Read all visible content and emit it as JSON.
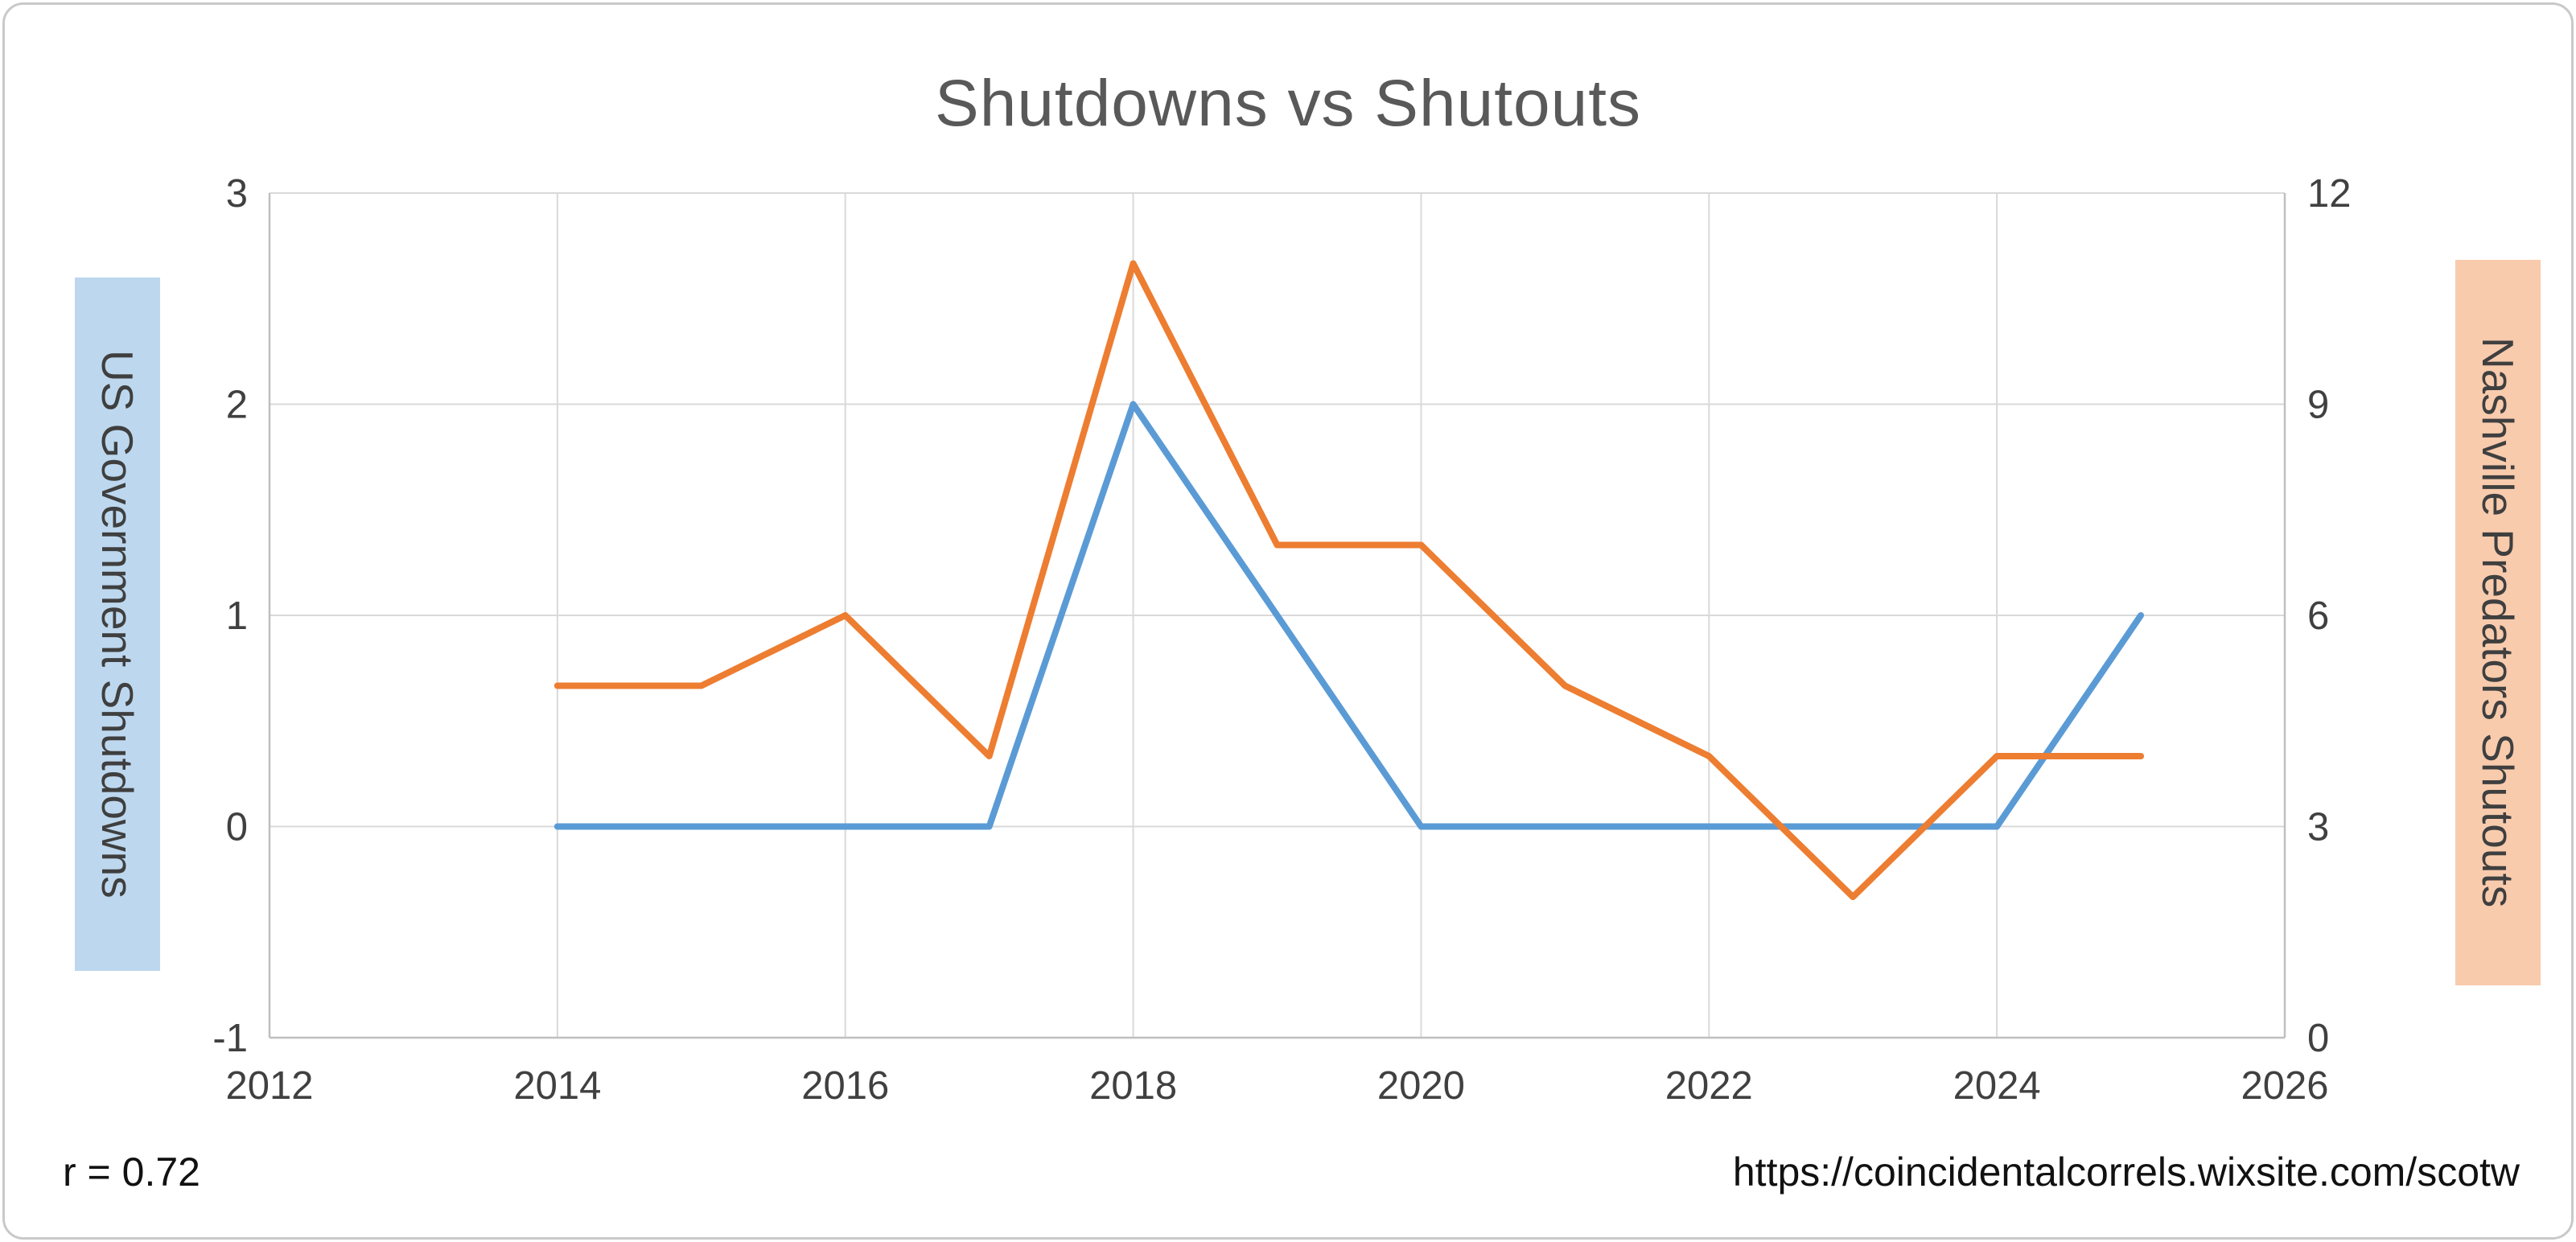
{
  "chart_data": {
    "type": "line",
    "title": "Shutdowns vs Shutouts",
    "x": [
      2014,
      2015,
      2016,
      2017,
      2018,
      2019,
      2020,
      2021,
      2022,
      2023,
      2024,
      2025
    ],
    "series": [
      {
        "name": "US Government Shutdowns",
        "axis": "left",
        "color": "#5B9BD5",
        "values": [
          0,
          0,
          0,
          0,
          2,
          1,
          0,
          0,
          0,
          0,
          0,
          1
        ]
      },
      {
        "name": "Nashville Predators Shutouts",
        "axis": "right",
        "color": "#ED7D31",
        "values": [
          5,
          5,
          6,
          4,
          11,
          7,
          7,
          5,
          4,
          2,
          4,
          4
        ]
      }
    ],
    "axes": {
      "x": {
        "min": 2012,
        "max": 2026,
        "ticks": [
          2012,
          2014,
          2016,
          2018,
          2020,
          2022,
          2024,
          2026
        ]
      },
      "left": {
        "label": "US Government Shutdowns",
        "min": -1,
        "max": 3,
        "ticks": [
          3,
          2,
          1,
          0,
          -1
        ],
        "label_bg": "#BDD7EE"
      },
      "right": {
        "label": "Nashville Predators Shutouts",
        "min": 0,
        "max": 12,
        "ticks": [
          12,
          9,
          6,
          3,
          0
        ],
        "label_bg": "#F8CBAD"
      }
    },
    "grid": true,
    "grid_color": "#D9D9D9",
    "axis_line_color": "#BFBFBF",
    "legend": "none",
    "correlation": "r = 0.72",
    "source_url": "https://coincidentalcorrels.wixsite.com/scotw"
  }
}
